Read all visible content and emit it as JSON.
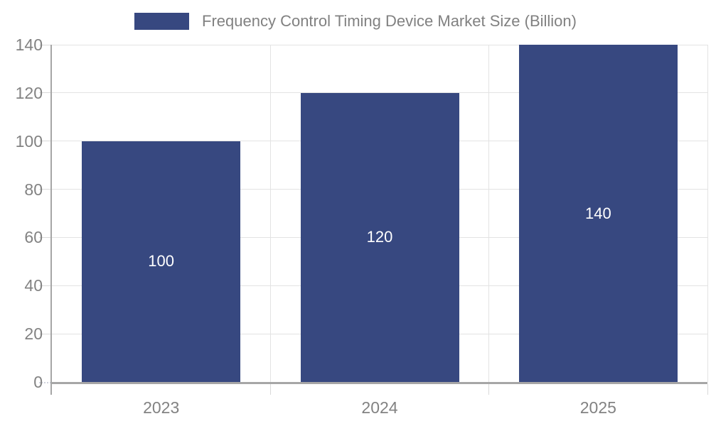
{
  "chart_data": {
    "type": "bar",
    "title": "Frequency Control Timing Device Market Size (Billion)",
    "categories": [
      "2023",
      "2024",
      "2025"
    ],
    "values": [
      100,
      120,
      140
    ],
    "bar_value_labels": [
      "100",
      "120",
      "140"
    ],
    "xlabel": "",
    "ylabel": "",
    "ylim": [
      0,
      140
    ],
    "yticks": [
      0,
      20,
      40,
      60,
      80,
      100,
      120,
      140
    ],
    "grid": true,
    "legend": {
      "position": "top",
      "label": "Frequency Control Timing Device Market Size (Billion)"
    },
    "colors": {
      "bar": "#374880",
      "bar_label": "#ffffff",
      "axis_line": "#a6a6a6",
      "gridline": "#e3e3e3",
      "tick_mark": "#d9d9d9",
      "zero_tick": "#cfd2dd",
      "tick_label": "#828282",
      "legend_text": "#818181",
      "background": "#ffffff"
    }
  }
}
